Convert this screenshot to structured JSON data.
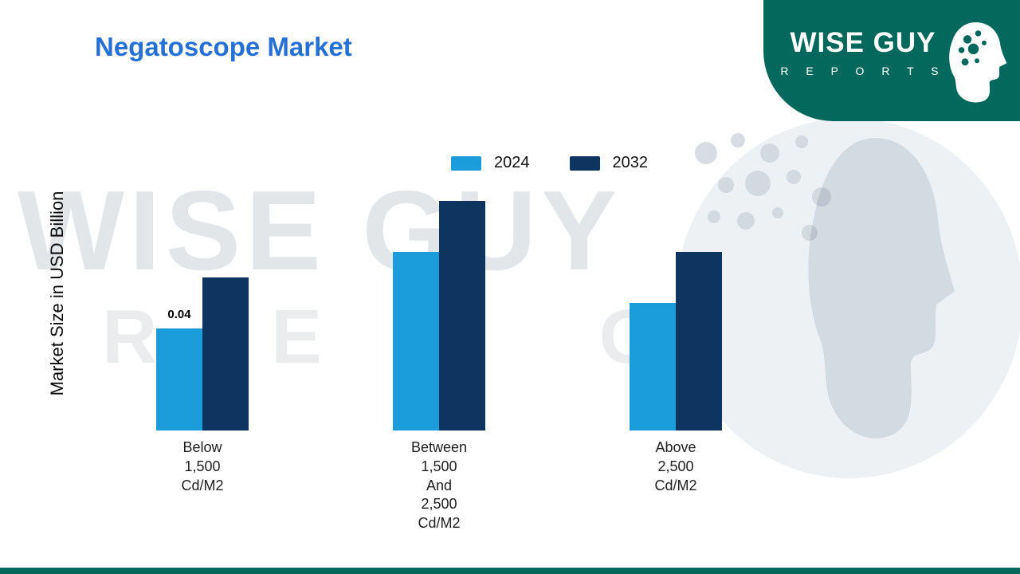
{
  "page": {
    "title": "Negatoscope Market"
  },
  "branding": {
    "logo_line1": "WISE GUY",
    "logo_line2": "R E P O R T S",
    "teal": "#04685c",
    "title_blue": "#2570d4"
  },
  "watermark": {
    "line1": "WISE GUY",
    "line2": "R E P O R T S"
  },
  "chart_data": {
    "type": "bar",
    "title": "Negatoscope Market",
    "xlabel": "",
    "ylabel": "Market Size in USD Billion",
    "unit": "USD Billion",
    "ylim": [
      0,
      0.1
    ],
    "grid": false,
    "legend_position": "top",
    "categories": [
      "Below 1,500 Cd/M2",
      "Between 1,500 And 2,500 Cd/M2",
      "Above 2,500 Cd/M2"
    ],
    "category_lines": [
      [
        "Below",
        "1,500",
        "Cd/M2"
      ],
      [
        "Between",
        "1,500",
        "And",
        "2,500",
        "Cd/M2"
      ],
      [
        "Above",
        "2,500",
        "Cd/M2"
      ]
    ],
    "series": [
      {
        "name": "2024",
        "color": "#1b9ddc",
        "values": [
          0.04,
          0.07,
          0.05
        ]
      },
      {
        "name": "2032",
        "color": "#0d3560",
        "values": [
          0.06,
          0.09,
          0.07
        ]
      }
    ],
    "annotations": [
      {
        "series": "2024",
        "category_index": 0,
        "text": "0.04"
      }
    ]
  }
}
